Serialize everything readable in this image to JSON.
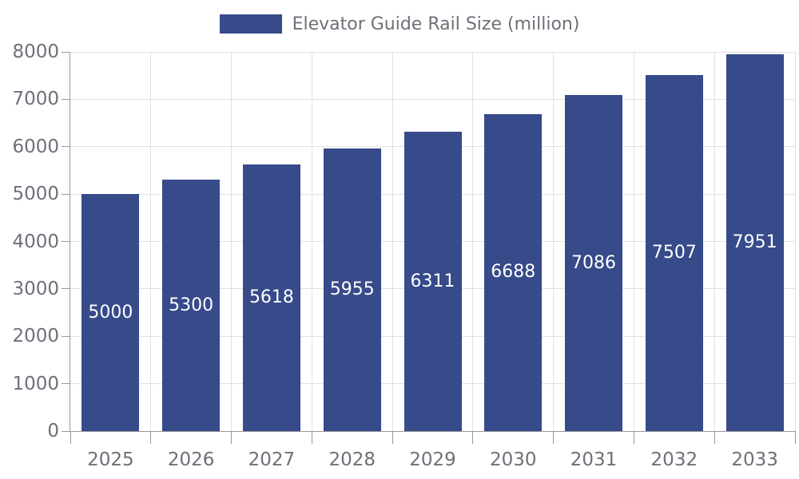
{
  "chart_data": {
    "type": "bar",
    "title": "Elevator Guide Rail Size (million)",
    "categories": [
      "2025",
      "2026",
      "2027",
      "2028",
      "2029",
      "2030",
      "2031",
      "2032",
      "2033"
    ],
    "series": [
      {
        "name": "Elevator Guide Rail Size (million)",
        "values": [
          5000,
          5300,
          5618,
          5955,
          6311,
          6688,
          7086,
          7507,
          7951
        ]
      }
    ],
    "value_labels": [
      "5000",
      "5300",
      "5618",
      "5955",
      "6311",
      "6688",
      "7086",
      "7507",
      "7951"
    ],
    "xlabel": "",
    "ylabel": "",
    "ylim": [
      0,
      8000
    ],
    "yticks": [
      0,
      1000,
      2000,
      3000,
      4000,
      5000,
      6000,
      7000,
      8000
    ],
    "grid": true,
    "legend_position": "top-center",
    "colors": {
      "bar": "#374A8A",
      "value_label": "#FFFFFF",
      "axis_text": "#6E7079",
      "legend_text": "#6E7079",
      "gridline": "#E1E1E1",
      "axis_line": "#999999"
    }
  }
}
